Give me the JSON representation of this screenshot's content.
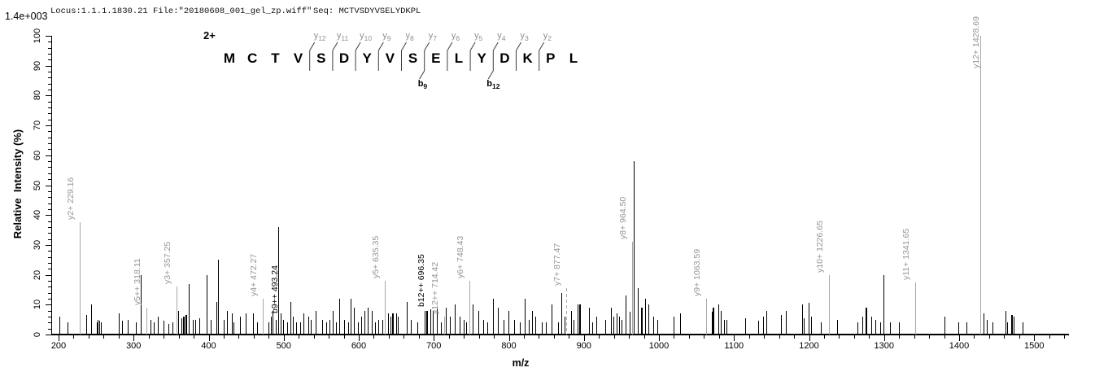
{
  "header": {
    "locus_file": "Locus:1.1.1.1830.21 File:\"20180608_001_gel_zp.wiff\"",
    "seq": "Seq: MCTVSDYVSELYDKPL"
  },
  "scale_label": "1.4e+003",
  "y_axis_title": "Relative  Intensity (%)",
  "x_axis_title": "m/z",
  "peptide": {
    "charge_label": "2+",
    "residues": [
      "M",
      "C",
      "T",
      "V",
      "S",
      "D",
      "Y",
      "V",
      "S",
      "E",
      "L",
      "Y",
      "D",
      "K",
      "P",
      "L"
    ],
    "y_ions": [
      {
        "base": "y",
        "num": "12",
        "gap": 4
      },
      {
        "base": "y",
        "num": "11",
        "gap": 5
      },
      {
        "base": "y",
        "num": "10",
        "gap": 6
      },
      {
        "base": "y",
        "num": "9",
        "gap": 7
      },
      {
        "base": "y",
        "num": "8",
        "gap": 8
      },
      {
        "base": "y",
        "num": "7",
        "gap": 9
      },
      {
        "base": "y",
        "num": "6",
        "gap": 10
      },
      {
        "base": "y",
        "num": "5",
        "gap": 11
      },
      {
        "base": "y",
        "num": "4",
        "gap": 12
      },
      {
        "base": "y",
        "num": "3",
        "gap": 13
      },
      {
        "base": "y",
        "num": "2",
        "gap": 14
      }
    ],
    "b_ions": [
      {
        "base": "b",
        "num": "9",
        "gap": 9
      },
      {
        "base": "b",
        "num": "12",
        "gap": 12
      }
    ]
  },
  "colors": {
    "peak_black": "#000000",
    "peak_gray": "#a8a8a8",
    "label_gray": "#969696",
    "seq_ion_gray": "#8f8f8f",
    "axis": "#000000"
  },
  "chart_data": {
    "type": "bar",
    "subtype": "ms2-fragment-mass-spectrum",
    "title": "",
    "xlabel": "m/z",
    "ylabel": "Relative  Intensity (%)",
    "x_range": [
      200,
      1546
    ],
    "y_range": [
      0,
      100
    ],
    "x_ticks": [
      200,
      300,
      400,
      500,
      600,
      700,
      800,
      900,
      1000,
      1100,
      1200,
      1300,
      1400,
      1500
    ],
    "x_minor_step": 20,
    "y_ticks": [
      0,
      10,
      20,
      30,
      40,
      50,
      60,
      70,
      80,
      90,
      100
    ],
    "y_minor_step": 2,
    "grid": false,
    "legend": "none",
    "annotated_peaks": [
      {
        "label": "y2+ 229.16",
        "mz": 229.16,
        "intensity": 37.5,
        "color": "gray"
      },
      {
        "label": "y5++ 318.11",
        "mz": 318.11,
        "intensity": 9,
        "color": "gray"
      },
      {
        "label": "y3+ 357.25",
        "mz": 357.25,
        "intensity": 16,
        "color": "gray"
      },
      {
        "label": "y4+ 472.27",
        "mz": 472.27,
        "intensity": 12,
        "color": "gray"
      },
      {
        "label": "b9++ 493.24",
        "mz": 493.24,
        "intensity": 36,
        "color": "black",
        "label_bottom_pct": 7,
        "label_dx": 6.5
      },
      {
        "label": "y5+ 635.35",
        "mz": 635.35,
        "intensity": 18,
        "color": "gray"
      },
      {
        "label": "b12++ 696.35",
        "mz": 696.35,
        "intensity": 8.5,
        "color": "black"
      },
      {
        "label": "y12++ 714.42",
        "mz": 714.42,
        "intensity": 6,
        "color": "gray"
      },
      {
        "label": "y6+ 748.43",
        "mz": 748.43,
        "intensity": 18,
        "color": "gray"
      },
      {
        "label": "y7+ 877.47",
        "mz": 877.47,
        "intensity": 15.5,
        "color": "gray",
        "dashed": true
      },
      {
        "label": "y8+ 964.50",
        "mz": 964.5,
        "intensity": 31,
        "color": "gray"
      },
      {
        "label": "y9+ 1063.59",
        "mz": 1063.59,
        "intensity": 12,
        "color": "gray"
      },
      {
        "label": "y10+ 1226.65",
        "mz": 1226.65,
        "intensity": 20,
        "color": "gray"
      },
      {
        "label": "y11+ 1341.65",
        "mz": 1341.65,
        "intensity": 17.5,
        "color": "gray"
      },
      {
        "label": "y12+ 1428.69",
        "mz": 1428.69,
        "intensity": 100,
        "color": "gray",
        "label_bottom_pct": 89,
        "label_dx": 6.5
      }
    ],
    "peaks": [
      [
        202,
        6
      ],
      [
        212,
        4
      ],
      [
        237,
        6.5
      ],
      [
        244,
        10
      ],
      [
        251,
        4
      ],
      [
        253,
        5
      ],
      [
        255,
        4.5
      ],
      [
        257,
        4
      ],
      [
        281,
        7
      ],
      [
        285,
        4.5
      ],
      [
        293,
        5
      ],
      [
        303,
        4
      ],
      [
        310,
        20
      ],
      [
        323,
        5
      ],
      [
        327,
        4
      ],
      [
        333,
        6
      ],
      [
        340,
        4.5
      ],
      [
        347,
        3.5
      ],
      [
        352,
        4
      ],
      [
        360,
        8
      ],
      [
        364,
        5.5
      ],
      [
        367,
        6,
        2
      ],
      [
        370,
        6.5,
        2
      ],
      [
        374,
        17
      ],
      [
        379,
        5
      ],
      [
        383,
        5
      ],
      [
        388,
        5.5
      ],
      [
        398,
        20
      ],
      [
        403,
        5
      ],
      [
        411,
        11
      ],
      [
        413,
        25
      ],
      [
        421,
        5
      ],
      [
        425,
        8
      ],
      [
        431,
        7
      ],
      [
        434,
        4
      ],
      [
        442,
        6
      ],
      [
        450,
        7
      ],
      [
        460,
        7
      ],
      [
        465,
        4
      ],
      [
        480,
        4
      ],
      [
        483,
        6
      ],
      [
        486,
        8
      ],
      [
        490,
        5
      ],
      [
        497,
        7
      ],
      [
        500,
        5
      ],
      [
        505,
        4
      ],
      [
        510,
        11
      ],
      [
        513,
        6
      ],
      [
        517,
        4
      ],
      [
        523,
        4
      ],
      [
        527,
        7
      ],
      [
        533,
        6
      ],
      [
        537,
        5
      ],
      [
        543,
        8
      ],
      [
        552,
        5
      ],
      [
        557,
        4
      ],
      [
        561,
        5
      ],
      [
        566,
        8
      ],
      [
        570,
        4
      ],
      [
        575,
        12
      ],
      [
        581,
        5
      ],
      [
        586,
        4
      ],
      [
        590,
        12
      ],
      [
        594,
        9
      ],
      [
        599,
        4
      ],
      [
        604,
        6
      ],
      [
        608,
        8
      ],
      [
        613,
        9
      ],
      [
        618,
        8
      ],
      [
        622,
        4
      ],
      [
        627,
        5
      ],
      [
        632,
        5
      ],
      [
        640,
        7
      ],
      [
        643,
        6
      ],
      [
        646,
        7,
        2
      ],
      [
        650,
        7
      ],
      [
        653,
        6
      ],
      [
        665,
        11
      ],
      [
        670,
        5
      ],
      [
        679,
        4
      ],
      [
        688,
        8
      ],
      [
        691,
        8,
        2
      ],
      [
        699,
        8
      ],
      [
        705,
        9
      ],
      [
        710,
        4
      ],
      [
        717,
        9
      ],
      [
        722,
        6
      ],
      [
        728,
        10
      ],
      [
        735,
        6
      ],
      [
        740,
        5
      ],
      [
        744,
        4
      ],
      [
        752,
        10
      ],
      [
        760,
        8
      ],
      [
        766,
        5
      ],
      [
        772,
        4
      ],
      [
        779,
        12
      ],
      [
        786,
        9
      ],
      [
        793,
        5
      ],
      [
        800,
        8
      ],
      [
        808,
        5
      ],
      [
        815,
        4
      ],
      [
        822,
        12
      ],
      [
        827,
        5
      ],
      [
        831,
        8
      ],
      [
        836,
        6
      ],
      [
        844,
        4
      ],
      [
        850,
        4
      ],
      [
        857,
        10
      ],
      [
        866,
        4
      ],
      [
        871,
        14
      ],
      [
        875,
        6
      ],
      [
        877,
        8
      ],
      [
        883,
        8
      ],
      [
        887,
        5
      ],
      [
        892,
        10
      ],
      [
        895,
        10,
        2
      ],
      [
        907,
        9
      ],
      [
        912,
        4
      ],
      [
        917,
        6
      ],
      [
        929,
        5
      ],
      [
        937,
        9
      ],
      [
        940,
        6
      ],
      [
        944,
        7
      ],
      [
        947,
        6
      ],
      [
        951,
        5
      ],
      [
        956,
        13
      ],
      [
        962,
        7.5
      ],
      [
        967,
        58
      ],
      [
        972,
        15.5
      ],
      [
        977,
        9,
        2
      ],
      [
        982,
        12
      ],
      [
        986,
        10
      ],
      [
        993,
        6
      ],
      [
        998,
        5
      ],
      [
        1020,
        6
      ],
      [
        1029,
        7
      ],
      [
        1071,
        7.5
      ],
      [
        1073,
        9,
        2
      ],
      [
        1080,
        10
      ],
      [
        1083,
        8
      ],
      [
        1087,
        5
      ],
      [
        1090,
        5
      ],
      [
        1115,
        5.5
      ],
      [
        1133,
        4.5
      ],
      [
        1139,
        6
      ],
      [
        1144,
        8
      ],
      [
        1163,
        6.5
      ],
      [
        1170,
        8
      ],
      [
        1191,
        10
      ],
      [
        1194,
        5.5
      ],
      [
        1200,
        10.5
      ],
      [
        1203,
        6
      ],
      [
        1216,
        4
      ],
      [
        1238,
        5
      ],
      [
        1265,
        4
      ],
      [
        1272,
        6
      ],
      [
        1276,
        9,
        2
      ],
      [
        1283,
        6
      ],
      [
        1289,
        5
      ],
      [
        1295,
        4
      ],
      [
        1300,
        20
      ],
      [
        1308,
        4
      ],
      [
        1320,
        4
      ],
      [
        1381,
        6
      ],
      [
        1399,
        4
      ],
      [
        1410,
        4
      ],
      [
        1429,
        11
      ],
      [
        1433,
        7
      ],
      [
        1437,
        5
      ],
      [
        1445,
        4
      ],
      [
        1462,
        8
      ],
      [
        1465,
        4
      ],
      [
        1470,
        6.5,
        2
      ],
      [
        1473,
        6
      ],
      [
        1485,
        4
      ]
    ]
  }
}
